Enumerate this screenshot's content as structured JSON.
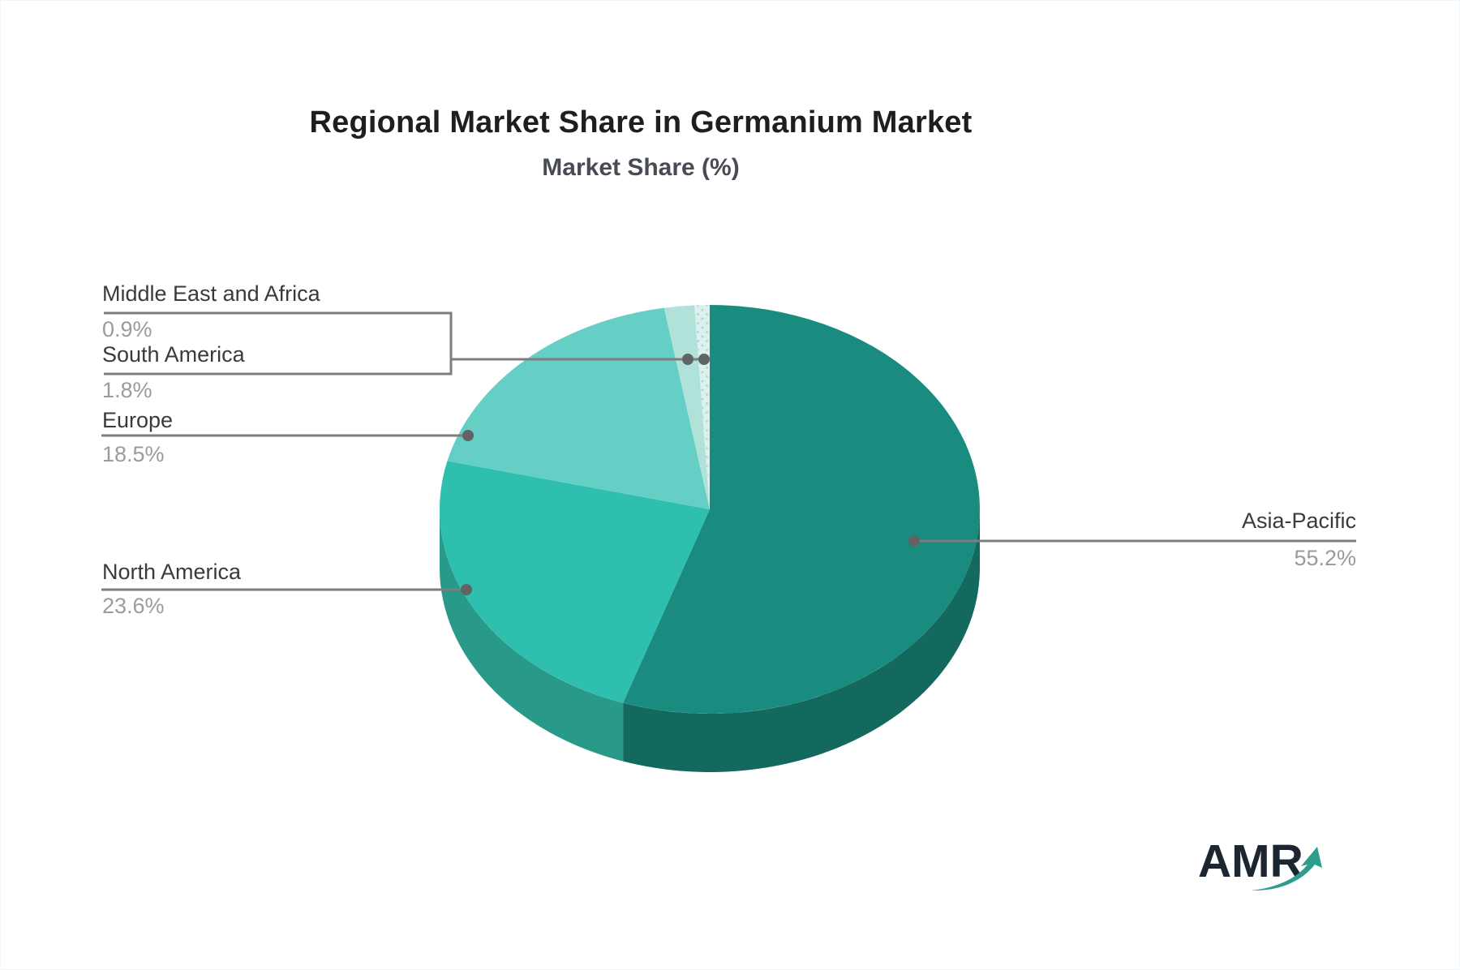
{
  "header": {
    "title": "Regional Market Share in Germanium Market",
    "subtitle": "Market Share (%)"
  },
  "chart_data": {
    "type": "pie",
    "style": "3d",
    "title": "Regional Market Share in Germanium Market",
    "subtitle": "Market Share (%)",
    "unit": "%",
    "start_angle_deg": 0,
    "direction": "clockwise",
    "slices": [
      {
        "label": "Asia-Pacific",
        "value": 55.2,
        "display": "55.2%",
        "color": "#1A8C7F",
        "side_color": "#14695F"
      },
      {
        "label": "North America",
        "value": 23.6,
        "display": "23.6%",
        "color": "#2FBFAE",
        "side_color": "#29998A"
      },
      {
        "label": "Europe",
        "value": 18.5,
        "display": "18.5%",
        "color": "#65CFC5"
      },
      {
        "label": "South America",
        "value": 1.8,
        "display": "1.8%",
        "color": "#B0E2DA"
      },
      {
        "label": "Middle East and Africa",
        "value": 0.9,
        "display": "0.9%",
        "color": "#DCF0ED",
        "pattern": "dots"
      }
    ],
    "callout_line_color": "#7d7d7d",
    "callout_dot_color": "#636363",
    "label_text_color": "#3a3a3a",
    "value_text_color": "#9b9b9b"
  },
  "logo": {
    "text": "AMR",
    "text_color": "#1c2631",
    "arrow_color": "#2E9D8E"
  }
}
